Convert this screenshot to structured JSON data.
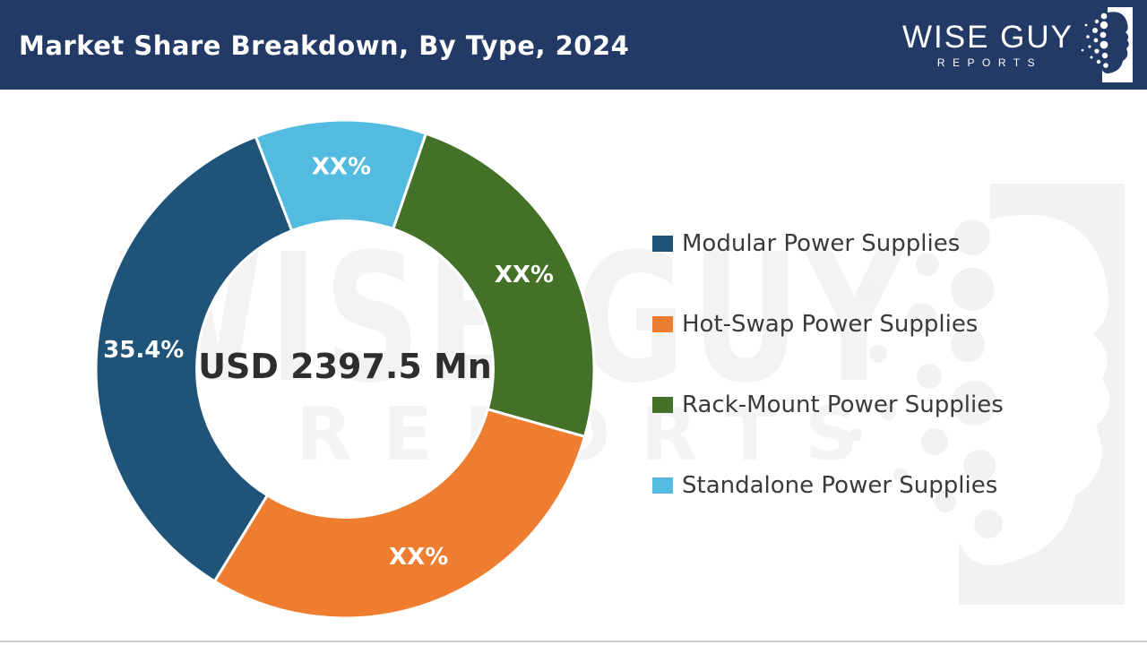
{
  "header": {
    "title": "Market Share Breakdown, By Type, 2024",
    "logo_line1": "WISE GUY",
    "logo_line2": "REPORTS"
  },
  "watermark": {
    "line1": "WISE GUY",
    "line2": "REPORTS"
  },
  "chart_data": {
    "type": "pie",
    "subtype": "donut",
    "title": "Market Share Breakdown, By Type, 2024",
    "center_label": "USD 2397.5 Mn",
    "start_angle_deg": 111,
    "counterclockwise": true,
    "inner_radius_ratio": 0.595,
    "legend_position": "right",
    "segments": [
      {
        "label": "Modular Power Supplies",
        "display_label": "35.4%",
        "value_pct": 35.4,
        "color": "#1f5478"
      },
      {
        "label": "Hot-Swap Power Supplies",
        "display_label": "XX%",
        "value_pct": 29.4,
        "color": "#ee7d30"
      },
      {
        "label": "Rack-Mount Power Supplies",
        "display_label": "XX%",
        "value_pct": 24.1,
        "color": "#447128"
      },
      {
        "label": "Standalone Power Supplies",
        "display_label": "XX%",
        "value_pct": 11.1,
        "color": "#54bbe0"
      }
    ],
    "colors": {
      "header_background": "#233a67",
      "center_text": "#2e2e2e",
      "legend_text": "#3a3a3a",
      "percent_text": "#ffffff"
    }
  }
}
